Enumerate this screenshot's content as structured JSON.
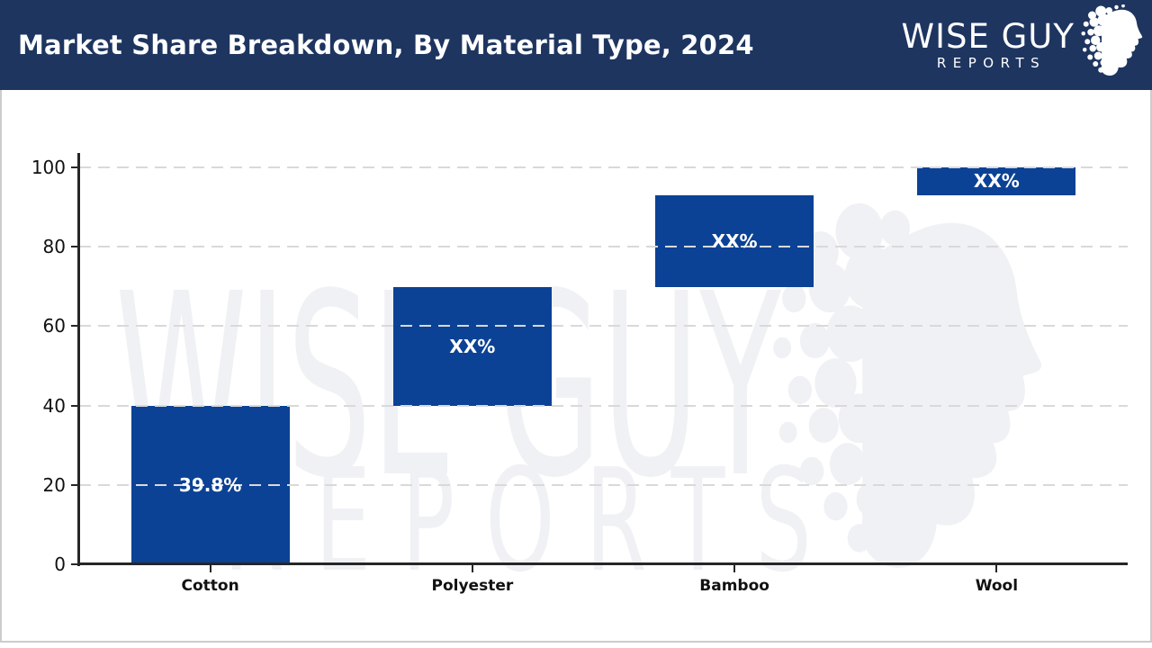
{
  "header": {
    "title": "Market Share Breakdown, By Material Type, 2024",
    "background_color": "#1e3560"
  },
  "logo": {
    "line1": "WISE GUY",
    "line2": "REPORTS"
  },
  "watermark": {
    "line1": "WISE GUY",
    "line2": "REPORTS"
  },
  "chart_data": {
    "type": "bar",
    "subtype": "waterfall",
    "title": "Market Share Breakdown, By Material Type, 2024",
    "xlabel": "",
    "ylabel": "",
    "categories": [
      "Cotton",
      "Polyester",
      "Bamboo",
      "Wool"
    ],
    "segments": [
      {
        "category": "Cotton",
        "start": 0,
        "end": 39.8,
        "label": "39.8%"
      },
      {
        "category": "Polyester",
        "start": 39.8,
        "end": 69.8,
        "label": "XX%"
      },
      {
        "category": "Bamboo",
        "start": 69.8,
        "end": 93.0,
        "label": "XX%"
      },
      {
        "category": "Wool",
        "start": 93.0,
        "end": 100.0,
        "label": "XX%"
      }
    ],
    "yticks": [
      0,
      20,
      40,
      60,
      80,
      100
    ],
    "ylim": [
      0,
      100
    ],
    "grid": "horizontal-dashed",
    "gridline_color": "#d9d9d9",
    "bar_color": "#0b4295",
    "bar_label_color": "#ffffff",
    "legend": "none"
  }
}
